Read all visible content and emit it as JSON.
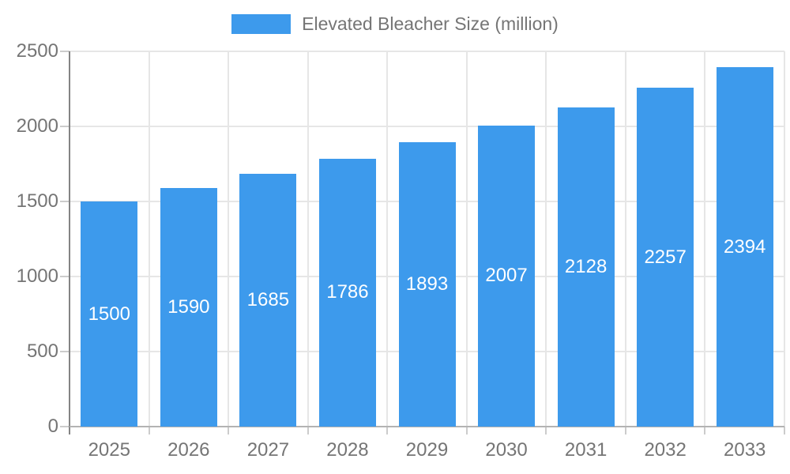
{
  "chart_data": {
    "type": "bar",
    "legend": "Elevated Bleacher Size (million)",
    "legend_position": "top",
    "categories": [
      "2025",
      "2026",
      "2027",
      "2028",
      "2029",
      "2030",
      "2031",
      "2032",
      "2033"
    ],
    "values": [
      1500,
      1590,
      1685,
      1786,
      1893,
      2007,
      2128,
      2257,
      2394
    ],
    "series_name": "Elevated Bleacher Size (million)",
    "xlabel": "",
    "ylabel": "",
    "ylim": [
      0,
      2500
    ],
    "yticks": [
      0,
      500,
      1000,
      1500,
      2000,
      2500
    ],
    "grid": true,
    "colors": {
      "bar": "#3d9aec",
      "value_label": "#ffffff",
      "axis_text": "#757575",
      "legend_text": "#757575",
      "gridline": "#e6e6e6",
      "axis_line": "#848484",
      "baseline": "#b3b3b3",
      "tick": "#cccccc",
      "background": "#ffffff"
    }
  }
}
